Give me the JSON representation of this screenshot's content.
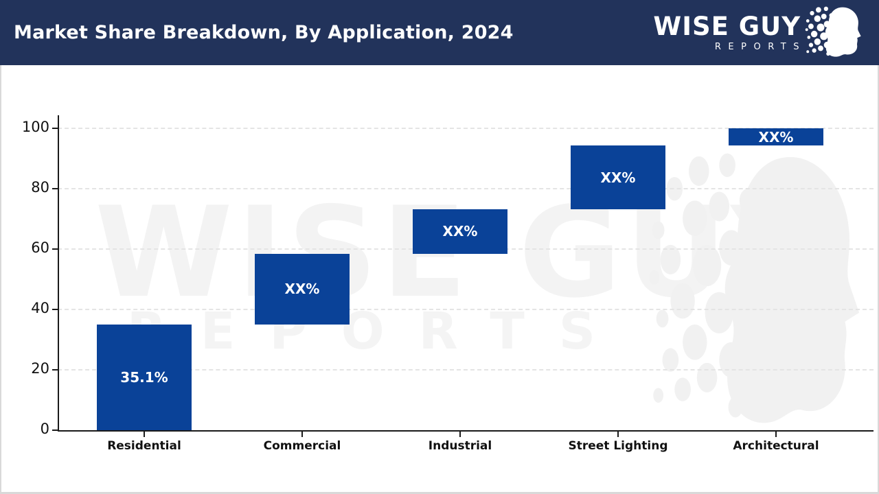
{
  "header": {
    "title": "Market Share Breakdown, By Application, 2024",
    "background_color": "#22335b",
    "logo": {
      "line1": "WISE GUY",
      "line2": "REPORTS"
    }
  },
  "watermark": {
    "line1": "WISE GUY",
    "line2": "REPORTS"
  },
  "chart_data": {
    "type": "bar",
    "subtype": "waterfall",
    "title": "Market Share Breakdown, By Application, 2024",
    "categories": [
      "Residential",
      "Commercial",
      "Industrial",
      "Street Lighting",
      "Architectural"
    ],
    "segments": [
      {
        "category": "Residential",
        "start": 0,
        "end": 35.1,
        "label": "35.1%"
      },
      {
        "category": "Commercial",
        "start": 35.1,
        "end": 58.5,
        "label": "XX%"
      },
      {
        "category": "Industrial",
        "start": 58.5,
        "end": 73.1,
        "label": "XX%"
      },
      {
        "category": "Street Lighting",
        "start": 73.1,
        "end": 94.3,
        "label": "XX%"
      },
      {
        "category": "Architectural",
        "start": 94.3,
        "end": 100.0,
        "label": "XX%"
      }
    ],
    "xlabel": "",
    "ylabel": "",
    "yticks": [
      0,
      20,
      40,
      60,
      80,
      100
    ],
    "ylim": [
      0,
      105
    ],
    "grid": "horizontal-dashed",
    "legend": "none",
    "bar_color": "#0a4298",
    "axis_color": "#1a1a1a",
    "gridline_color": "#e4e4e4"
  }
}
